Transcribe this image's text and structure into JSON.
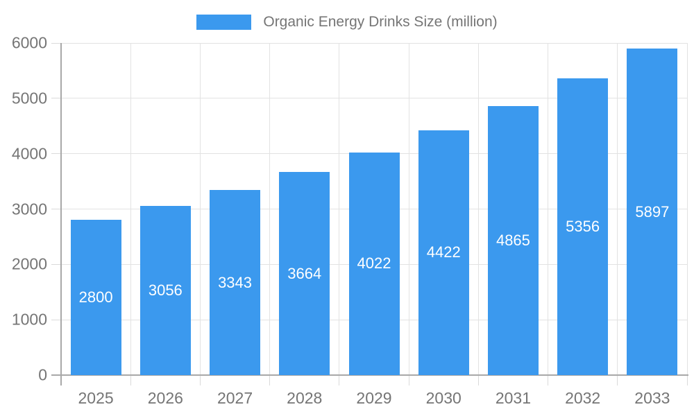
{
  "chart_data": {
    "type": "bar",
    "title": "Organic Energy Drinks Size (million)",
    "categories": [
      "2025",
      "2026",
      "2027",
      "2028",
      "2029",
      "2030",
      "2031",
      "2032",
      "2033"
    ],
    "values": [
      2800,
      3056,
      3343,
      3664,
      4022,
      4422,
      4865,
      5356,
      5897
    ],
    "xlabel": "",
    "ylabel": "",
    "ylim": [
      0,
      6000
    ],
    "ytick_step": 1000,
    "grid": true,
    "legend_position": "top-center",
    "value_labels": "inside-middle-white",
    "colors": {
      "bar": "#3B99EE",
      "value_label": "#FFFFFF",
      "axis_text": "#757575",
      "gridline": "#E2E2E2",
      "tick_mark": "#DADADA",
      "axis_line": "#A8A8A8",
      "background": "#FFFFFF"
    }
  }
}
